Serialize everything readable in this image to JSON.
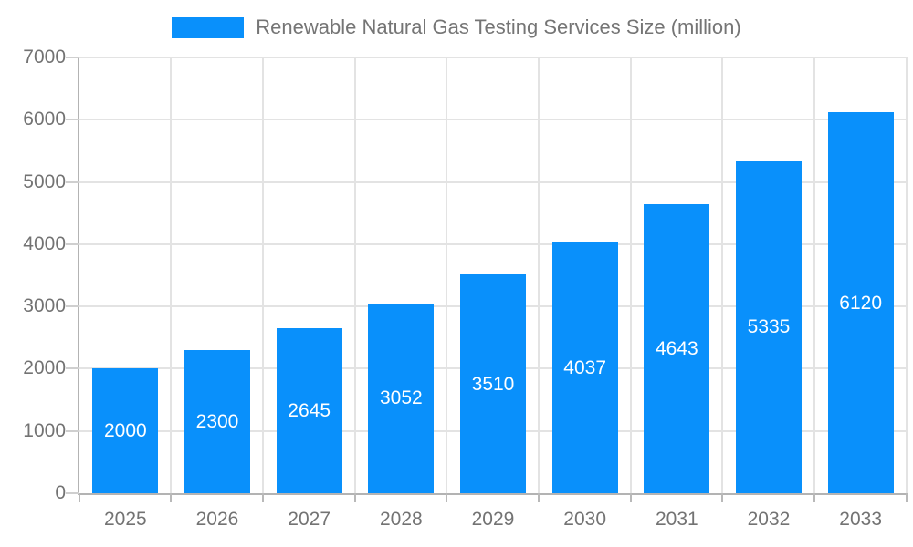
{
  "legend": {
    "label": "Renewable Natural Gas Testing Services Size (million)"
  },
  "chart_data": {
    "type": "bar",
    "title": "Renewable Natural Gas Testing Services Size (million)",
    "series_name": "Renewable Natural Gas Testing Services Size (million)",
    "categories": [
      "2025",
      "2026",
      "2027",
      "2028",
      "2029",
      "2030",
      "2031",
      "2032",
      "2033"
    ],
    "values": [
      2000,
      2300,
      2645,
      3052,
      3510,
      4037,
      4643,
      5335,
      6120
    ],
    "xlabel": "",
    "ylabel": "",
    "ylim": [
      0,
      7000
    ],
    "ytick_step": 1000,
    "y_tick_labels": [
      "0",
      "1000",
      "2000",
      "3000",
      "4000",
      "5000",
      "6000",
      "7000"
    ],
    "grid": true,
    "legend_position": "top",
    "colors": {
      "bar": "#0990fb",
      "bar_label": "#ffffff",
      "grid_line": "#e3e3e3",
      "axis_line": "#b3b3b3",
      "y_tick_mark": "#cfcfcf",
      "x_tick_mark": "#b9b9b9",
      "tick_label": "#737373",
      "legend_text": "#757575"
    }
  }
}
